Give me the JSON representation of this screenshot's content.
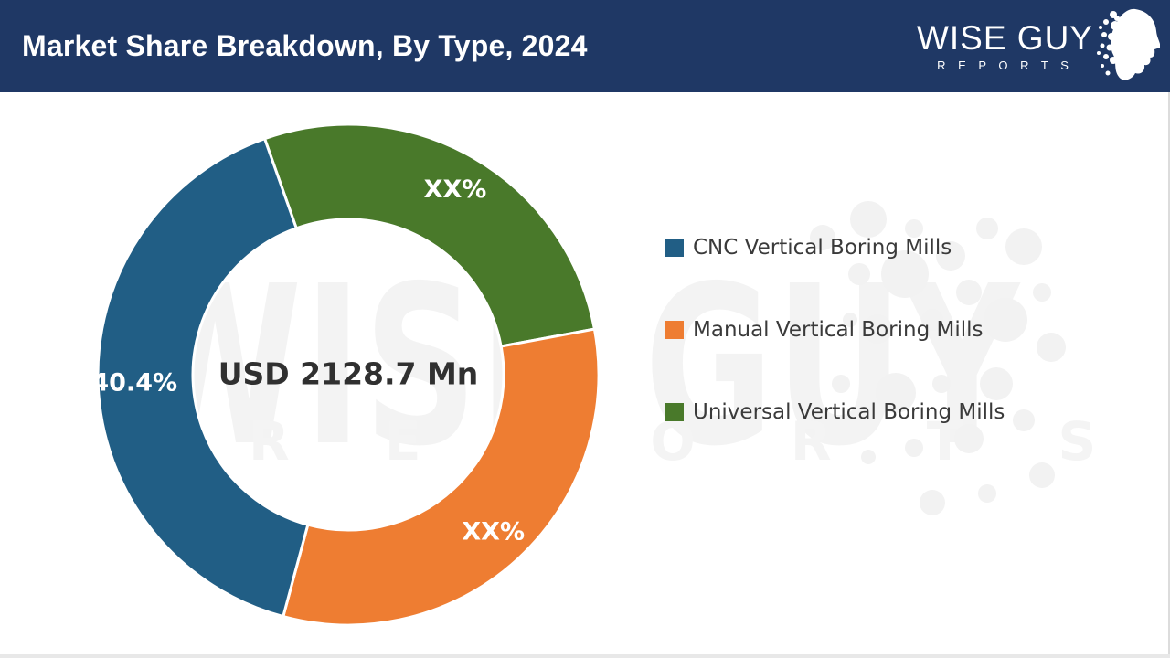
{
  "header": {
    "title": "Market Share Breakdown, By Type, 2024",
    "bg_color": "#1f3865",
    "logo": {
      "line1": "WISE GUY",
      "line2": "R E P O R T S"
    }
  },
  "watermark": {
    "text_large": "WISE GUY",
    "text_small": "R E P O R T S"
  },
  "chart_data": {
    "type": "pie",
    "subtype": "donut",
    "title": "Market Share Breakdown, By Type, 2024",
    "center_label": "USD 2128.7 Mn",
    "start_angle_deg": -19.5,
    "inner_outer_radius_px": [
      170,
      274
    ],
    "segments": [
      {
        "name": "Universal Vertical Boring Mills",
        "label": "XX%",
        "value_pct": 27.5,
        "color": "#49792a"
      },
      {
        "name": "Manual Vertical Boring Mills",
        "label": "XX%",
        "value_pct": 32.1,
        "color": "#ee7d32"
      },
      {
        "name": "CNC Vertical Boring Mills",
        "label": "40.4%",
        "value_pct": 40.4,
        "color": "#215e85"
      }
    ],
    "legend": [
      {
        "label": "CNC Vertical Boring Mills",
        "color": "#215e85"
      },
      {
        "label": "Manual Vertical Boring Mills",
        "color": "#ee7d32"
      },
      {
        "label": "Universal Vertical Boring Mills",
        "color": "#49792a"
      }
    ],
    "legend_position": "right"
  }
}
